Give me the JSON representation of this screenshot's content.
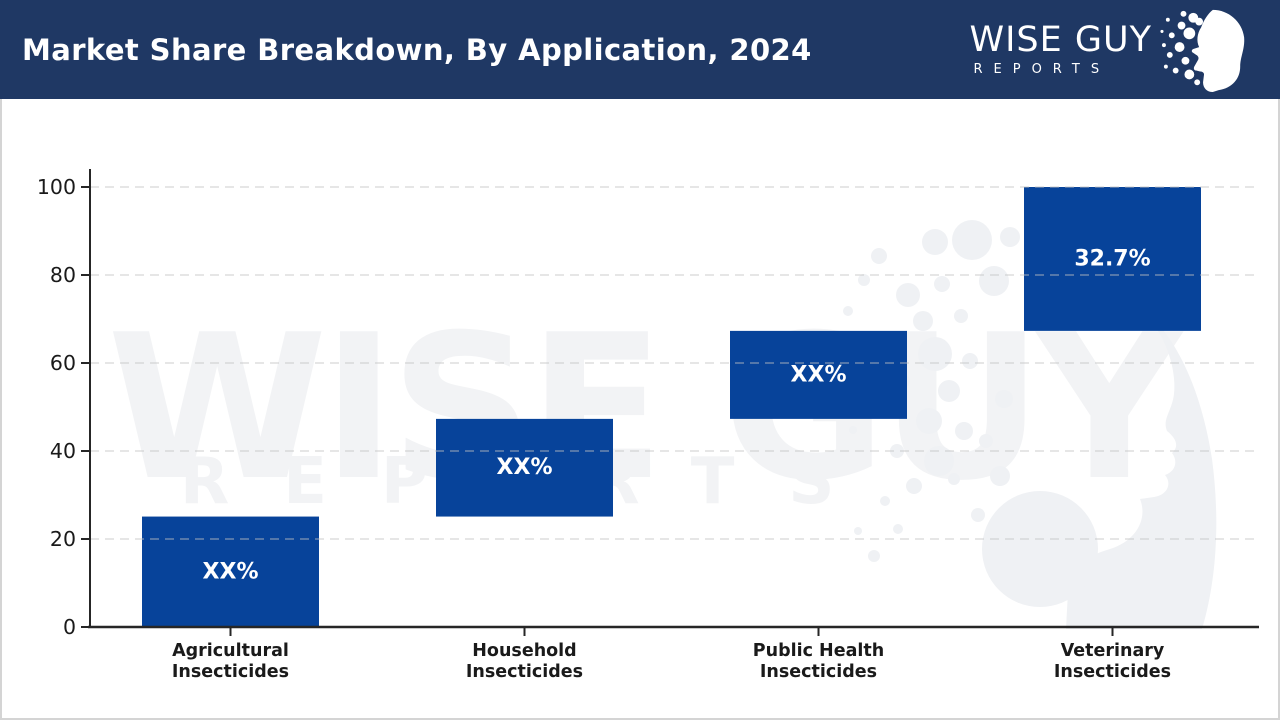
{
  "header": {
    "title": "Market Share Breakdown, By Application, 2024",
    "background_color": "#1f3864",
    "logo": {
      "name": "WISE GUY REPORTS",
      "line1": "WISE GUY",
      "line2": "REPORTS",
      "face_icon": "dotted-head-profile-icon"
    }
  },
  "watermark": {
    "line1": "WISE GUY",
    "line2": "REPORTS",
    "face_icon": "dotted-head-profile-watermark",
    "color": "#f2f3f5"
  },
  "chart_data": {
    "type": "bar",
    "subtype": "floating-segment bars (cumulative market-share breakdown)",
    "title": "Market Share Breakdown, By Application, 2024",
    "categories": [
      "Agricultural Insecticides",
      "Household Insecticides",
      "Public Health Insecticides",
      "Veterinary Insecticides"
    ],
    "category_labels_two_lines": [
      [
        "Agricultural",
        "Insecticides"
      ],
      [
        "Household",
        "Insecticides"
      ],
      [
        "Public Health",
        "Insecticides"
      ],
      [
        "Veterinary",
        "Insecticides"
      ]
    ],
    "segments": [
      {
        "category": "Agricultural Insecticides",
        "start": 0,
        "end": 25.1,
        "label": "XX%"
      },
      {
        "category": "Household Insecticides",
        "start": 25.1,
        "end": 47.3,
        "label": "XX%"
      },
      {
        "category": "Public Health Insecticides",
        "start": 47.3,
        "end": 67.3,
        "label": "XX%"
      },
      {
        "category": "Veterinary Insecticides",
        "start": 67.3,
        "end": 100,
        "label": "32.7%"
      }
    ],
    "xlabel": "",
    "ylabel": "",
    "yticks": [
      0,
      20,
      40,
      60,
      80,
      100
    ],
    "ylim": [
      0,
      103.5
    ],
    "grid": {
      "horizontal": true,
      "style": "dashed",
      "drawn_over_bars": true
    },
    "legend_position": "none",
    "bar_color": "#07439a",
    "bar_label_color": "#ffffff",
    "axis_color": "#262626",
    "tick_label_color": "#1a1a1a",
    "gridline_color": "#c2c2c2"
  }
}
